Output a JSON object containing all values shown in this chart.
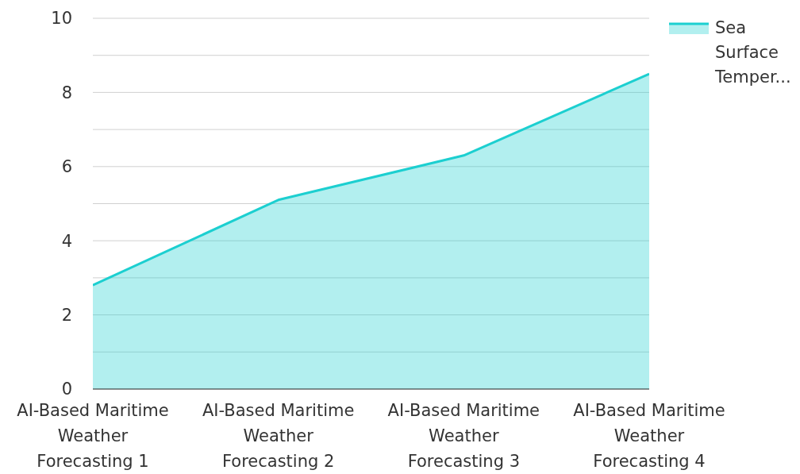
{
  "chart_data": {
    "type": "area",
    "categories": [
      "AI-Based Maritime Weather Forecasting 1",
      "AI-Based Maritime Weather Forecasting 2",
      "AI-Based Maritime Weather Forecasting 3",
      "AI-Based Maritime Weather Forecasting 4"
    ],
    "series": [
      {
        "name": "Sea Surface Temper...",
        "color": "#1ccfd0",
        "values": [
          2.8,
          5.1,
          6.3,
          8.5
        ]
      }
    ],
    "ylim": [
      0,
      10
    ],
    "yticks": [
      0,
      {
        "value": 1,
        "label": null
      },
      2,
      {
        "value": 3,
        "label": null
      },
      4,
      {
        "value": 5,
        "label": null
      },
      6,
      {
        "value": 7,
        "label": null
      },
      8,
      {
        "value": 9,
        "label": null
      },
      10
    ],
    "grid": "y",
    "legend": "top right",
    "marker": "none",
    "line_style": "solid"
  }
}
